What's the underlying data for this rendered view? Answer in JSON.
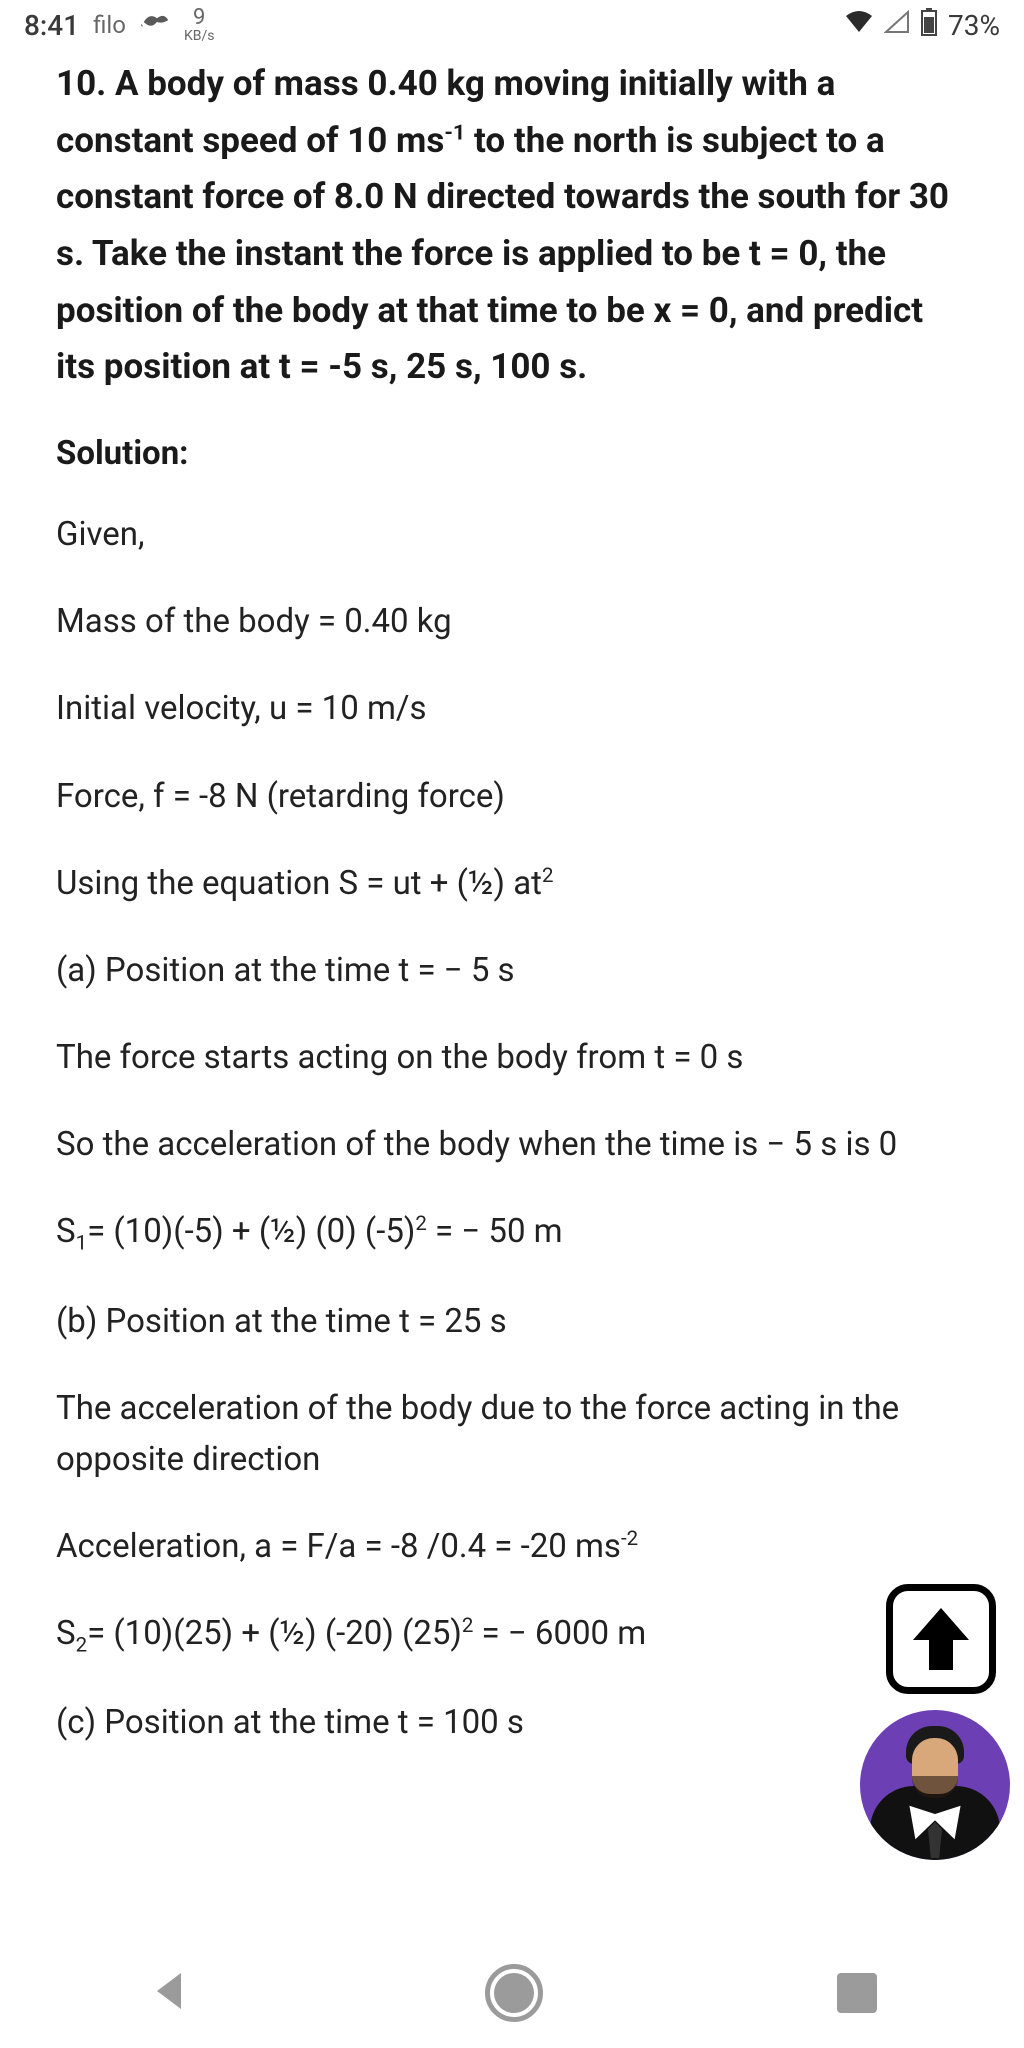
{
  "status": {
    "time": "8:41",
    "app": "filo",
    "kbs_num": "9",
    "kbs_label": "KB/s",
    "battery": "73%"
  },
  "content": {
    "question_html": "10. A body of mass 0.40 kg moving initially with a constant speed of 10 ms<sup>-1</sup> to the north is subject to a constant force of 8.0 N directed towards the south for 30 s. Take the instant the force is applied to be t = 0, the position of the body at that time to be x = 0, and predict its position at t = -5 s, 25 s, 100 s.",
    "solution_label": "Solution:",
    "lines": [
      "Given,",
      "Mass of the body = 0.40 kg",
      "Initial velocity, u = 10 m/s",
      "Force, f = -8 N (retarding force)",
      "Using the equation S = ut + (½) at<sup>2</sup>",
      "(a) Position at the time t = − 5 s",
      "The force starts acting on the body from t = 0 s",
      "So the acceleration of the body when the time is − 5 s is 0",
      "S<sub>1</sub>= (10)(-5) + (½) (0) (-5)<sup>2</sup> = − 50 m",
      "(b) Position at the time t = 25 s",
      "The acceleration of the body due to the force acting in the opposite direction",
      "Acceleration, a = F/a = -8 /0.4 = -20 ms<sup>-2</sup>",
      "S<sub>2</sub>= (10)(25) + (½) (-20) (25)<sup>2</sup> = − 6000 m",
      "(c) Position at the time t = 100 s"
    ]
  },
  "colors": {
    "text": "#1a1a1a",
    "body_text": "#222222",
    "status_text": "#4a4a4a",
    "nav_gray": "#9b9b9b",
    "avatar_bg": "#6c3fb5"
  }
}
